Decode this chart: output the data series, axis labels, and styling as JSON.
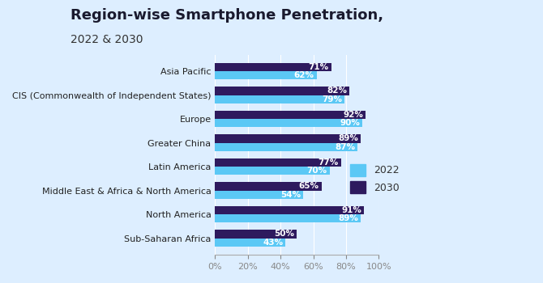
{
  "title_line1": "Region-wise Smartphone Penetration,",
  "title_line2": "2022 & 2030",
  "categories": [
    "Sub-Saharan Africa",
    "North America",
    "Middle East & Africa & North America",
    "Latin America",
    "Greater China",
    "Europe",
    "CIS (Commonwealth of Independent States)",
    "Asia Pacific"
  ],
  "values_2030": [
    50,
    91,
    65,
    77,
    89,
    92,
    82,
    71
  ],
  "values_2022": [
    43,
    89,
    54,
    70,
    87,
    90,
    79,
    62
  ],
  "color_2030": "#2e1a5e",
  "color_2022": "#5bc8f5",
  "bg_color": "#ddeeff",
  "xlim": [
    0,
    100
  ],
  "xticks": [
    0,
    20,
    40,
    60,
    80,
    100
  ],
  "xticklabels": [
    "0%",
    "20%",
    "40%",
    "60%",
    "80%",
    "100%"
  ],
  "legend_2022": "2022",
  "legend_2030": "2030",
  "bar_height": 0.35,
  "label_fontsize": 7.5,
  "title_fontsize": 13,
  "subtitle_fontsize": 10,
  "tick_fontsize": 8,
  "ytick_fontsize": 8
}
